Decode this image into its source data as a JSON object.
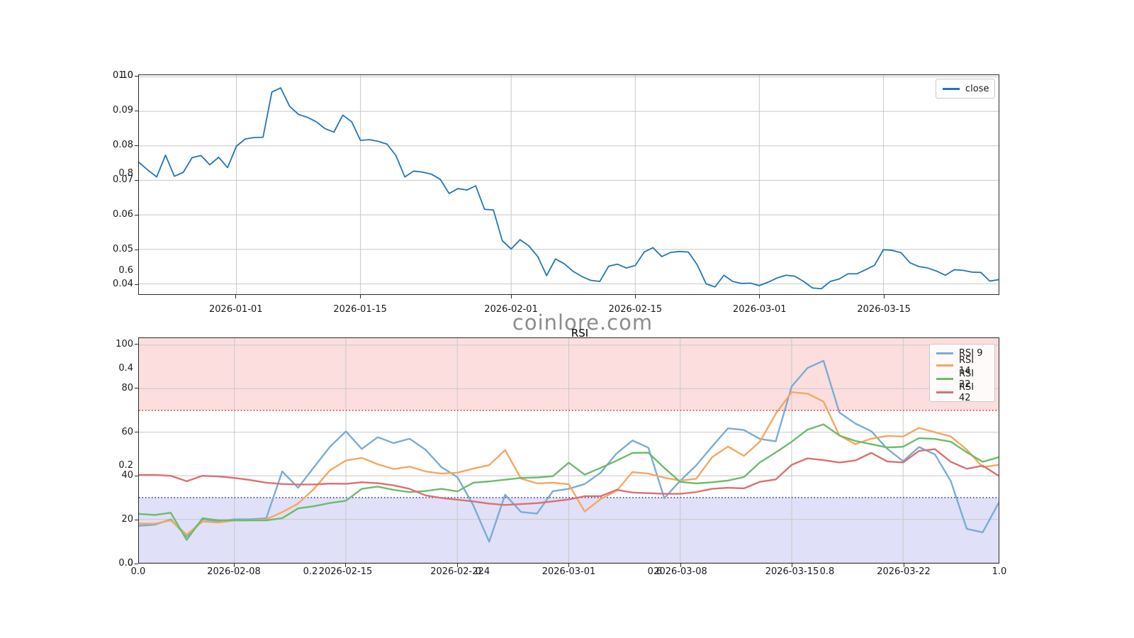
{
  "watermark": "coinlore.com",
  "phantom_axis": {
    "y_labels": [
      "1.0",
      "0.8",
      "0.6",
      "0.4",
      "0.2",
      "0.0"
    ],
    "x_labels": [
      "0.0",
      "0.2",
      "0.4",
      "0.6",
      "0.8",
      "1.0"
    ]
  },
  "chart_data": [
    {
      "type": "line",
      "title": "",
      "start_date": "2025-12-21",
      "x_tick_labels": [
        "2026-01-01",
        "2026-01-15",
        "2026-02-01",
        "2026-02-15",
        "2026-03-01",
        "2026-03-15"
      ],
      "y_tick_labels": [
        "0.04",
        "0.05",
        "0.06",
        "0.07",
        "0.08",
        "0.09",
        "0.10"
      ],
      "ylim": [
        0.037,
        0.1005
      ],
      "grid": true,
      "legend_position": "upper right",
      "series": [
        {
          "name": "close",
          "color": "#1f77b4",
          "width": 1.8,
          "values": [
            0.0752,
            0.073,
            0.071,
            0.0773,
            0.0712,
            0.0723,
            0.0766,
            0.0772,
            0.0745,
            0.0767,
            0.0737,
            0.0799,
            0.082,
            0.0824,
            0.0825,
            0.0956,
            0.0968,
            0.0915,
            0.0891,
            0.0883,
            0.087,
            0.085,
            0.084,
            0.0889,
            0.087,
            0.0816,
            0.0818,
            0.0813,
            0.0805,
            0.0772,
            0.071,
            0.0727,
            0.0724,
            0.0718,
            0.0703,
            0.0662,
            0.0676,
            0.0672,
            0.0684,
            0.0616,
            0.0614,
            0.0525,
            0.0501,
            0.0528,
            0.051,
            0.0479,
            0.0424,
            0.0472,
            0.0458,
            0.0436,
            0.0421,
            0.041,
            0.0407,
            0.0451,
            0.0457,
            0.0446,
            0.0453,
            0.0492,
            0.0505,
            0.0479,
            0.0491,
            0.0494,
            0.0492,
            0.0455,
            0.04,
            0.0391,
            0.0425,
            0.0407,
            0.0401,
            0.0402,
            0.0395,
            0.0405,
            0.0417,
            0.0425,
            0.0422,
            0.0407,
            0.0388,
            0.0386,
            0.0407,
            0.0414,
            0.0429,
            0.0429,
            0.0441,
            0.0454,
            0.0499,
            0.0497,
            0.049,
            0.0461,
            0.045,
            0.0446,
            0.0437,
            0.0425,
            0.0441,
            0.0439,
            0.0434,
            0.0433,
            0.0408,
            0.0412
          ]
        }
      ]
    },
    {
      "type": "line",
      "title": "RSI",
      "start_date": "2026-02-02",
      "x_tick_labels": [
        "2026-02-08",
        "2026-02-15",
        "2026-02-22",
        "2026-03-01",
        "2026-03-08",
        "2026-03-15",
        "2026-03-22"
      ],
      "y_tick_labels": [
        "0",
        "20",
        "40",
        "60",
        "80",
        "100"
      ],
      "ylim": [
        0,
        103.2
      ],
      "grid": true,
      "legend_position": "upper right",
      "threshold_lines": [
        {
          "value": 70,
          "color": "#e02020",
          "style": "dotted"
        },
        {
          "value": 30,
          "color": "#2424bb",
          "style": "dotted"
        }
      ],
      "bands": [
        {
          "from": 70,
          "to": 103.2,
          "color": "#fcdede"
        },
        {
          "from": 0,
          "to": 30,
          "color": "#e0e0f8"
        }
      ],
      "series": [
        {
          "name": "RSI 9",
          "color": "#79add2",
          "width": 2.4,
          "values": [
            17,
            17.5,
            20,
            12,
            20,
            19,
            20,
            20,
            20.5,
            42,
            34.5,
            44,
            53.3,
            60.4,
            52.3,
            57.7,
            55,
            57,
            52,
            44,
            39.4,
            26.5,
            9.7,
            31.3,
            23.4,
            22.6,
            32.9,
            34,
            36.2,
            41.4,
            50.2,
            56.2,
            52.9,
            29.7,
            37.7,
            44.7,
            53.4,
            61.8,
            61,
            56.9,
            55.8,
            81,
            89.5,
            92.8,
            69,
            64,
            60.5,
            52.4,
            46.7,
            53.2,
            49.8,
            37.5,
            15.6,
            14,
            27.5
          ]
        },
        {
          "name": "RSI 14",
          "color": "#f5a75f",
          "width": 2.4,
          "values": [
            18,
            18,
            19.5,
            13,
            19,
            18.5,
            19.5,
            19.5,
            20,
            23.3,
            27.2,
            34,
            42.5,
            47,
            48.2,
            45.3,
            43.1,
            44.2,
            42,
            41,
            41.4,
            43.3,
            44.9,
            51.8,
            38.7,
            36.5,
            36.8,
            36.1,
            23.6,
            29.3,
            33.1,
            41.7,
            41,
            39.1,
            37.8,
            38.6,
            48.5,
            53.4,
            49.1,
            55.6,
            68.5,
            78.4,
            77.7,
            74.1,
            58.5,
            54.5,
            57,
            58.3,
            58,
            62,
            60,
            58,
            52,
            44,
            45
          ]
        },
        {
          "name": "RSI 22",
          "color": "#6bbc6b",
          "width": 2.4,
          "values": [
            22.5,
            22,
            23,
            10.5,
            20.5,
            19.5,
            19.5,
            19.5,
            19.5,
            20.5,
            25,
            26,
            27.5,
            28.5,
            34,
            35,
            33.5,
            32.5,
            33,
            34,
            32.8,
            36.8,
            37.4,
            38.2,
            39,
            39.2,
            39.8,
            46,
            40.5,
            43.6,
            46.9,
            50.5,
            50.6,
            43.6,
            37.2,
            36.5,
            37,
            37.8,
            39.4,
            46.1,
            50.7,
            55.6,
            61.2,
            63.6,
            58.5,
            56,
            54.5,
            53,
            53.3,
            57.3,
            56.9,
            55.6,
            50.8,
            46.4,
            48.5
          ]
        },
        {
          "name": "RSI 42",
          "color": "#dc7070",
          "width": 2.4,
          "values": [
            40.4,
            40.4,
            40,
            37.5,
            40,
            39.7,
            39,
            38,
            36.8,
            36.2,
            36,
            36,
            36.4,
            36.3,
            37,
            36.6,
            35.6,
            34,
            31,
            29.8,
            29,
            28.2,
            27.2,
            26.6,
            27,
            27.4,
            28.2,
            29.1,
            30.6,
            30.6,
            33.5,
            32.3,
            32,
            31.7,
            31.7,
            32.5,
            34,
            34.5,
            34.2,
            37.2,
            38.3,
            45,
            48,
            47.2,
            46.1,
            47,
            50.5,
            46.6,
            46.1,
            51.4,
            52.2,
            46.4,
            43.2,
            44.6,
            40
          ]
        }
      ]
    }
  ]
}
